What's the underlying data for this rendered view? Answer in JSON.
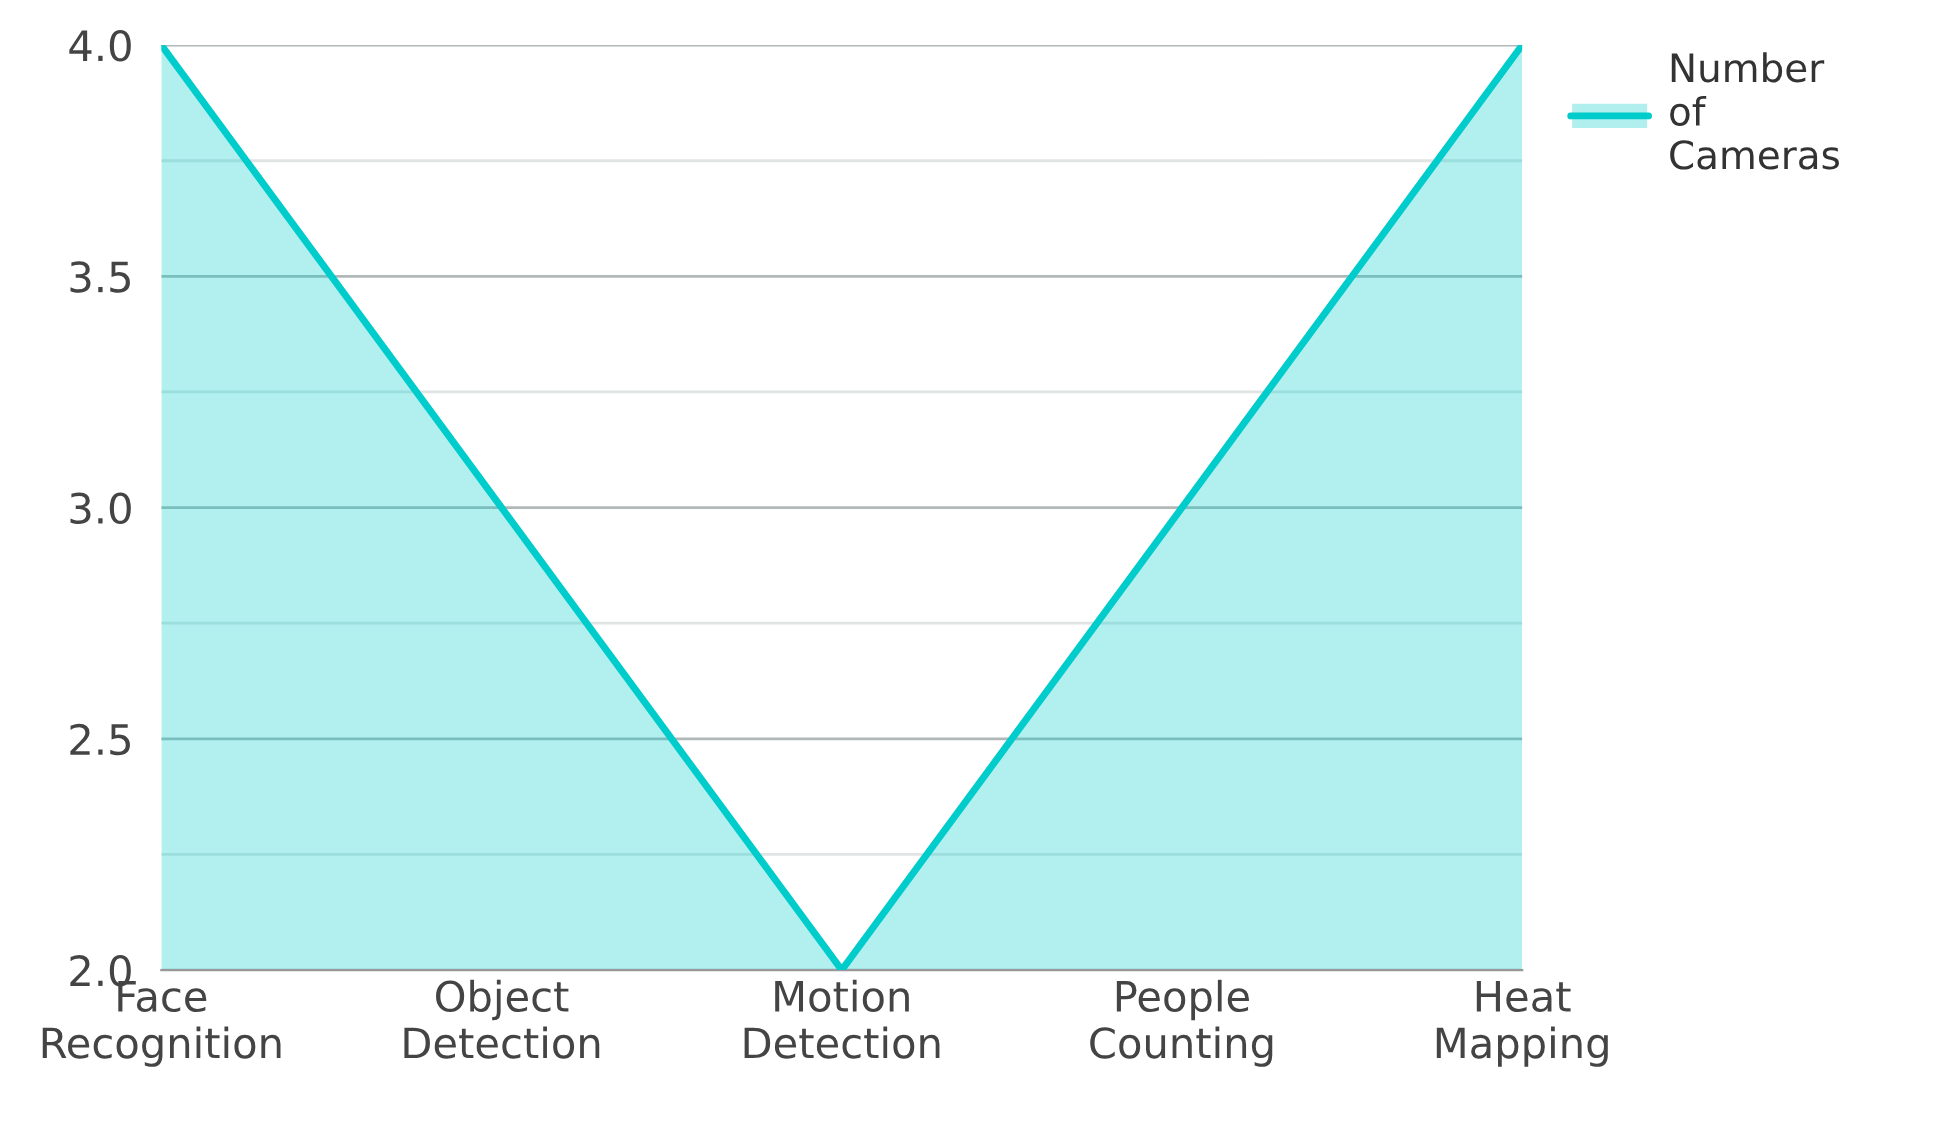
{
  "chart_data": {
    "type": "area",
    "categories": [
      "Face Recognition",
      "Object Detection",
      "Motion Detection",
      "People Counting",
      "Heat Mapping"
    ],
    "series": [
      {
        "name": "Number of Cameras",
        "color": "#00cccc",
        "values": [
          4,
          3,
          2,
          3,
          4
        ]
      }
    ],
    "ylim": [
      2.0,
      4.0
    ],
    "yticks": [
      {
        "value": 2.0,
        "label": "2.0"
      },
      {
        "value": 2.5,
        "label": "2.5"
      },
      {
        "value": 3.0,
        "label": "3.0"
      },
      {
        "value": 3.5,
        "label": "3.5"
      },
      {
        "value": 4.0,
        "label": "4.0"
      }
    ],
    "grid": "y",
    "legend": "top right"
  }
}
